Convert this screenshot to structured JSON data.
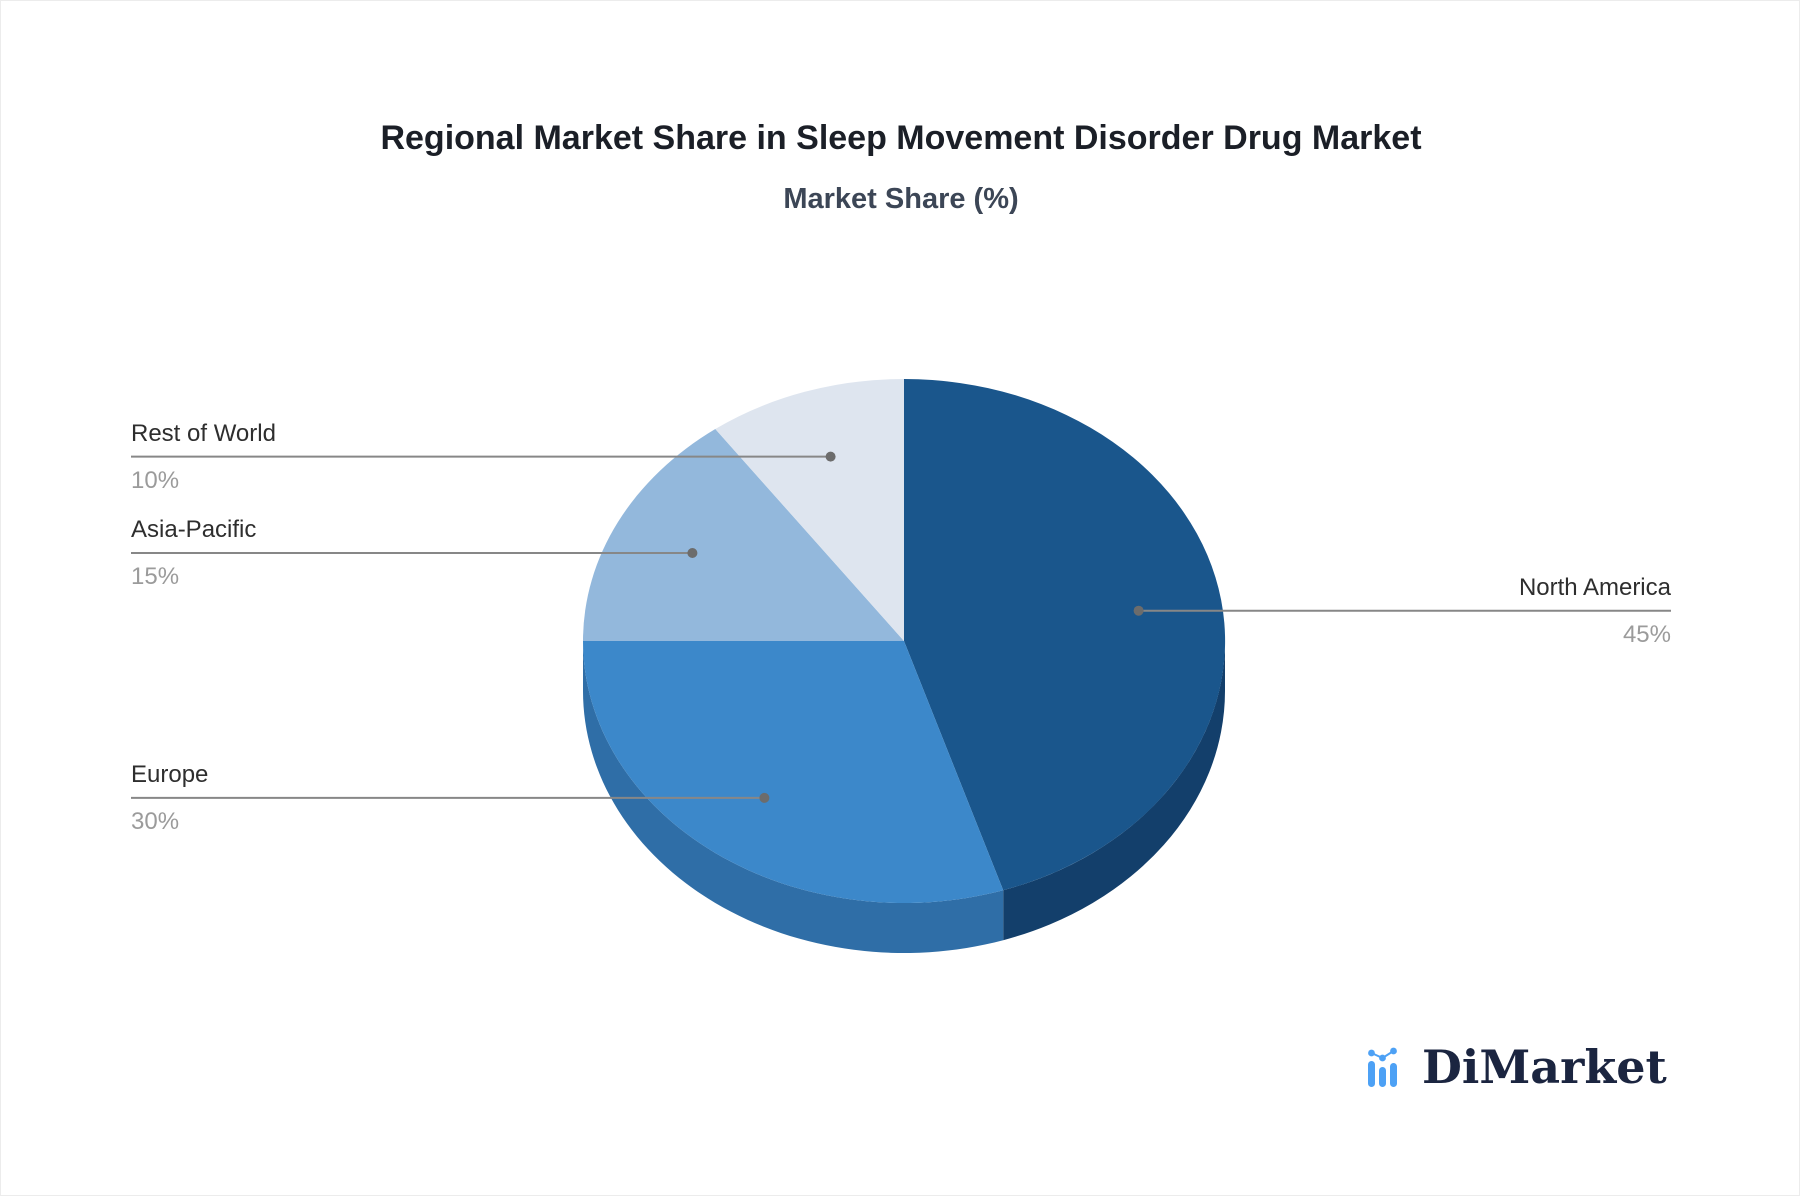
{
  "title": "Regional Market Share in Sleep Movement Disorder Drug Market",
  "subtitle": "Market Share (%)",
  "logo": {
    "text": "DiMarket",
    "icon": "bar-line-chart-icon",
    "icon_color": "#4DA1F5",
    "text_color": "#1b2540"
  },
  "chart_data": {
    "type": "pie",
    "style": "3d",
    "title": "Regional Market Share in Sleep Movement Disorder Drug Market",
    "subtitle": "Market Share (%)",
    "unit": "%",
    "start_angle_deg": 0,
    "clockwise": true,
    "legend_position": "leader-lines",
    "labels": [
      "North America",
      "Europe",
      "Asia-Pacific",
      "Rest of World"
    ],
    "values": [
      45,
      30,
      15,
      10
    ],
    "display_values": [
      "45%",
      "30%",
      "15%",
      "10%"
    ],
    "colors": [
      "#1A568C",
      "#3C88CA",
      "#93B8DC",
      "#DEE5EF"
    ],
    "side_colors": [
      "#133F6B",
      "#2F6EA7",
      "#7FA8CF",
      "#C9D4E4"
    ],
    "leader_line_color": "#878787",
    "leader_dot_color": "#6c6c6c",
    "label_color": "#2e2e2e",
    "value_color": "#9b9b9b"
  }
}
